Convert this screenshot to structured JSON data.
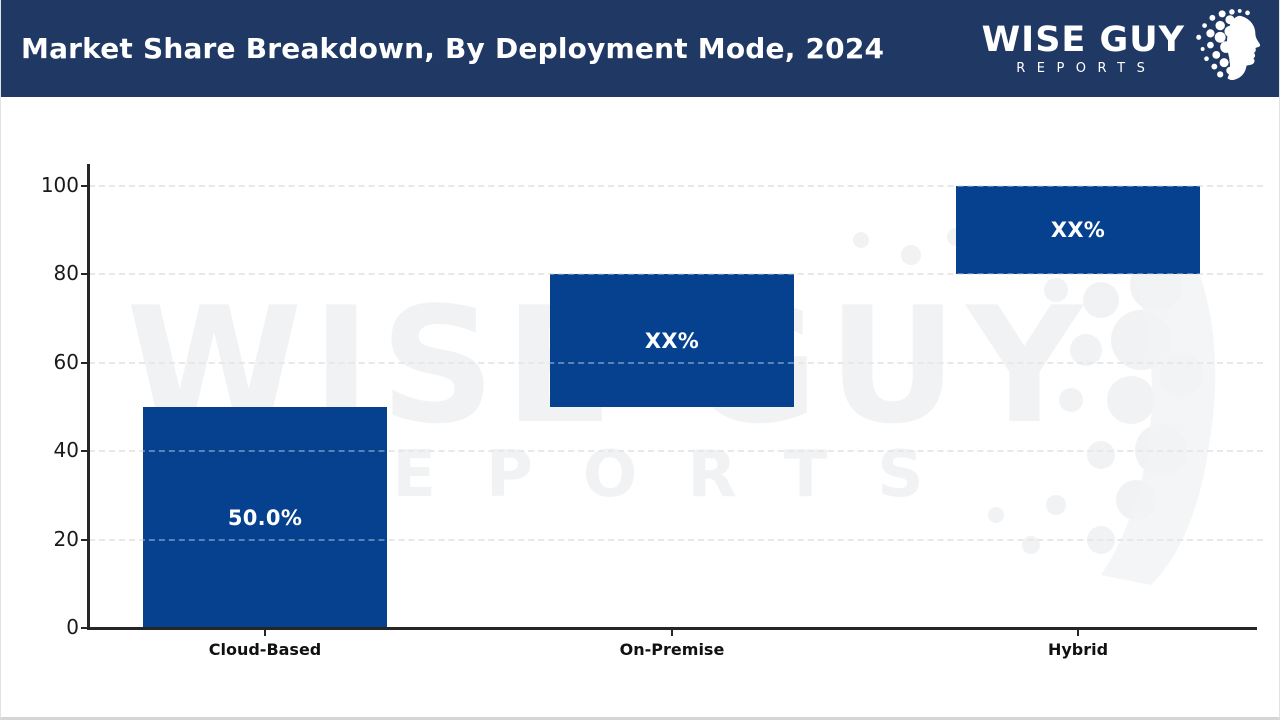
{
  "header": {
    "title": "Market Share Breakdown, By Deployment Mode, 2024",
    "logo": {
      "line1": "WISE GUY",
      "line2": "REPORTS"
    }
  },
  "watermark": {
    "line1": "WISE GUY",
    "line2": "REPORTS"
  },
  "chart_data": {
    "type": "bar",
    "subtype": "waterfall",
    "title": "Market Share Breakdown, By Deployment Mode, 2024",
    "categories": [
      "Cloud-Based",
      "On-Premise",
      "Hybrid"
    ],
    "bars": [
      {
        "category": "Cloud-Based",
        "start": 0,
        "end": 50,
        "label": "50.0%"
      },
      {
        "category": "On-Premise",
        "start": 50,
        "end": 80,
        "label": "XX%"
      },
      {
        "category": "Hybrid",
        "start": 80,
        "end": 100,
        "label": "XX%"
      }
    ],
    "yticks": [
      0,
      20,
      40,
      60,
      80,
      100
    ],
    "ylim": [
      0,
      105
    ],
    "xlabel": "",
    "ylabel": "",
    "grid": "horizontal-dashed",
    "legend": "none",
    "bar_color": "#05418f",
    "bar_label_color": "#ffffff"
  },
  "colors": {
    "header_bg": "#203864",
    "axis": "#262626",
    "grid": "#dcdcdc",
    "watermark": "#f1f2f4"
  }
}
